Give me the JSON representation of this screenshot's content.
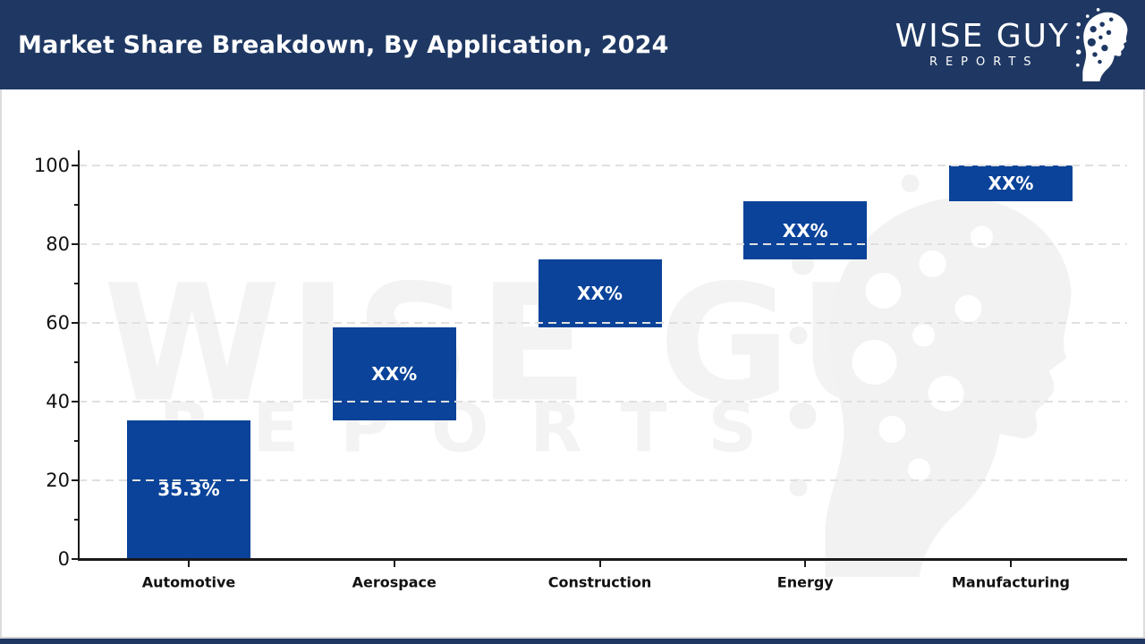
{
  "header": {
    "title": "Market Share Breakdown, By Application, 2024",
    "logo": {
      "line1": "WISE GUY",
      "line2": "REPORTS"
    },
    "bg_color": "#1F3863",
    "text_color": "#FFFFFF"
  },
  "watermark": {
    "line1": "WISE GUY",
    "line2": "REPORTS"
  },
  "chart_data": {
    "type": "bar",
    "subtype": "waterfall",
    "title": "Market Share Breakdown, By Application, 2024",
    "categories": [
      "Automotive",
      "Aerospace",
      "Construction",
      "Energy",
      "Manufacturing"
    ],
    "segments": [
      {
        "category": "Automotive",
        "start": 0,
        "end": 35.3,
        "label": "35.3%"
      },
      {
        "category": "Aerospace",
        "start": 35.3,
        "end": 58.8,
        "label": "XX%"
      },
      {
        "category": "Construction",
        "start": 58.8,
        "end": 76.1,
        "label": "XX%"
      },
      {
        "category": "Energy",
        "start": 76.1,
        "end": 90.8,
        "label": "XX%"
      },
      {
        "category": "Manufacturing",
        "start": 90.8,
        "end": 100,
        "label": "XX%"
      }
    ],
    "y_ticks": [
      0,
      20,
      40,
      60,
      80,
      100
    ],
    "ylim": [
      0,
      100
    ],
    "xlabel": "",
    "ylabel": "",
    "grid": "horizontal dashed, drawn above bars",
    "legend": "none",
    "bar_color": "#0A4399",
    "bar_label_color": "#FFFFFF",
    "axis_color": "#1A1A1A"
  }
}
